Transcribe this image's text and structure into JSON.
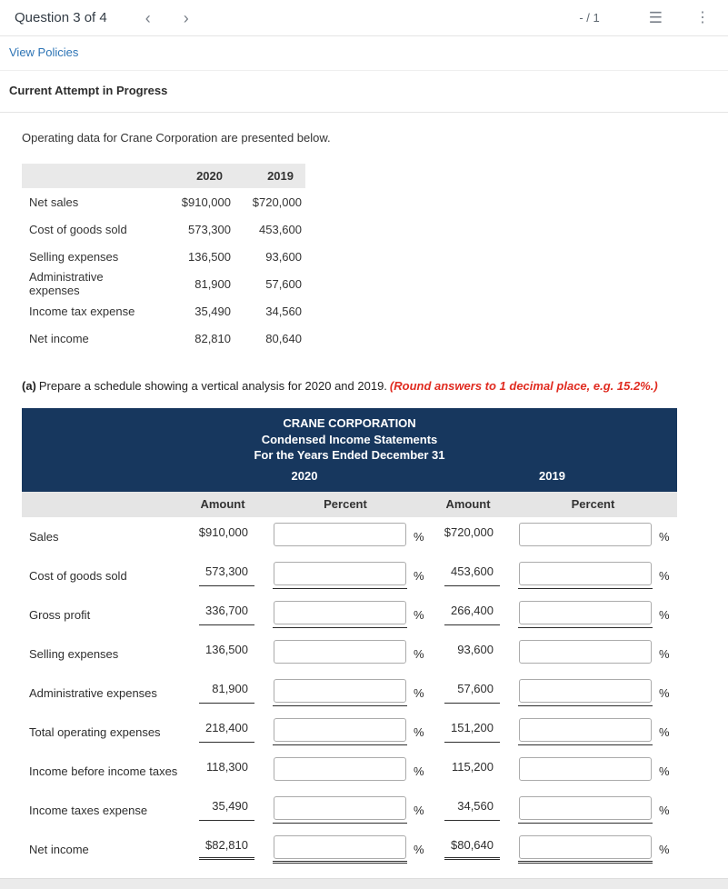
{
  "topbar": {
    "title": "Question 3 of 4",
    "score": "- / 1",
    "prev_icon": "‹",
    "next_icon": "›",
    "list_icon": "☰",
    "kebab_icon": "⋮"
  },
  "links": {
    "view_policies": "View Policies"
  },
  "attempt_status": "Current Attempt in Progress",
  "intro": "Operating data for Crane Corporation are presented below.",
  "operating_table": {
    "col_headers": [
      "2020",
      "2019"
    ],
    "rows": [
      {
        "label": "Net sales",
        "y2020": "$910,000",
        "y2019": "$720,000"
      },
      {
        "label": "Cost of goods sold",
        "y2020": "573,300",
        "y2019": "453,600"
      },
      {
        "label": "Selling expenses",
        "y2020": "136,500",
        "y2019": "93,600"
      },
      {
        "label": "Administrative expenses",
        "y2020": "81,900",
        "y2019": "57,600"
      },
      {
        "label": "Income tax expense",
        "y2020": "35,490",
        "y2019": "34,560"
      },
      {
        "label": "Net income",
        "y2020": "82,810",
        "y2019": "80,640"
      }
    ]
  },
  "instruction": {
    "part": "(a)",
    "text": "Prepare a schedule showing a vertical analysis for 2020 and 2019.",
    "note": "(Round answers to 1 decimal place, e.g. 15.2%.)"
  },
  "analysis": {
    "title1": "CRANE CORPORATION",
    "title2": "Condensed Income Statements",
    "title3": "For the Years Ended December 31",
    "year_left": "2020",
    "year_right": "2019",
    "subheaders": [
      "Amount",
      "Percent",
      "Amount",
      "Percent"
    ],
    "percent_sign": "%",
    "rows": [
      {
        "label": "Sales",
        "a2020": "$910,000",
        "a2019": "$720,000",
        "underline": "none"
      },
      {
        "label": "Cost of goods sold",
        "a2020": "573,300",
        "a2019": "453,600",
        "underline": "single"
      },
      {
        "label": "Gross profit",
        "a2020": "336,700",
        "a2019": "266,400",
        "underline": "single"
      },
      {
        "label": "Selling expenses",
        "a2020": "136,500",
        "a2019": "93,600",
        "underline": "none"
      },
      {
        "label": "Administrative expenses",
        "a2020": "81,900",
        "a2019": "57,600",
        "underline": "single"
      },
      {
        "label": "Total operating expenses",
        "a2020": "218,400",
        "a2019": "151,200",
        "underline": "single"
      },
      {
        "label": "Income before income taxes",
        "a2020": "118,300",
        "a2019": "115,200",
        "underline": "none"
      },
      {
        "label": "Income taxes expense",
        "a2020": "35,490",
        "a2019": "34,560",
        "underline": "single"
      },
      {
        "label": "Net income",
        "a2020": "$82,810",
        "a2019": "$80,640",
        "underline": "double"
      }
    ]
  },
  "colors": {
    "navy_header": "#17375e",
    "link_blue": "#2d74b5",
    "note_red": "#e02b20",
    "header_gray": "#e9e9e9",
    "subhead_gray": "#e5e5e5"
  }
}
